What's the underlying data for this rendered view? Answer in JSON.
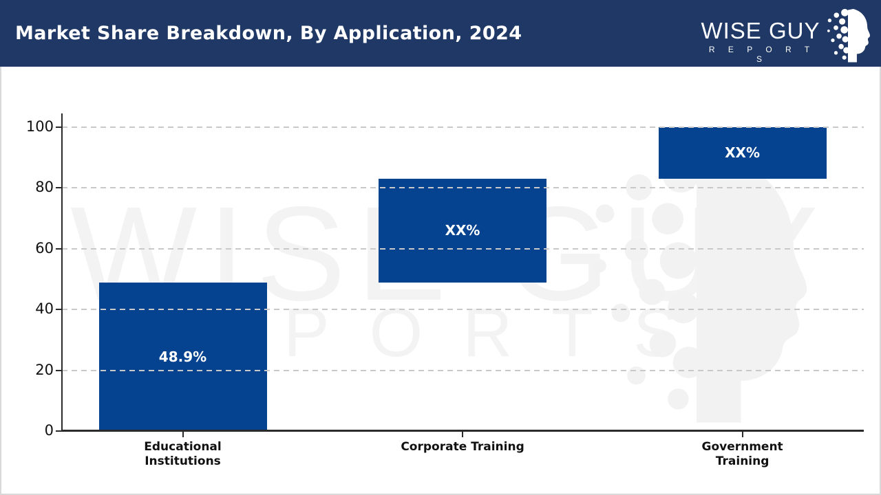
{
  "header": {
    "title": "Market Share Breakdown, By Application, 2024",
    "logo": {
      "name": "WISE GUY",
      "tagline": "R E P O R T S"
    }
  },
  "watermark": {
    "line1": "WISE GUY",
    "line2": "REPORTS"
  },
  "colors": {
    "header_bg": "#1f3865",
    "bar_fill": "#05428f",
    "bar_label": "#ffffff",
    "gridline": "#c9c9c9",
    "axis": "#2a2a2a",
    "watermark": "#f3f3f3"
  },
  "chart_data": {
    "type": "bar",
    "subtype": "floating-waterfall",
    "title": "Market Share Breakdown, By Application, 2024",
    "categories": [
      "Educational\nInstitutions",
      "Corporate Training",
      "Government\nTraining"
    ],
    "bars": [
      {
        "category": "Educational\nInstitutions",
        "start": 0,
        "end": 48.9,
        "label": "48.9%"
      },
      {
        "category": "Corporate Training",
        "start": 48.9,
        "end": 83,
        "label": "XX%"
      },
      {
        "category": "Government\nTraining",
        "start": 83,
        "end": 100,
        "label": "XX%"
      }
    ],
    "yticks": [
      0,
      20,
      40,
      60,
      80,
      100
    ],
    "ylim": [
      0,
      104.5
    ],
    "grid": "dashed-horizontal",
    "legend": "none",
    "xlabel": "",
    "ylabel": ""
  }
}
